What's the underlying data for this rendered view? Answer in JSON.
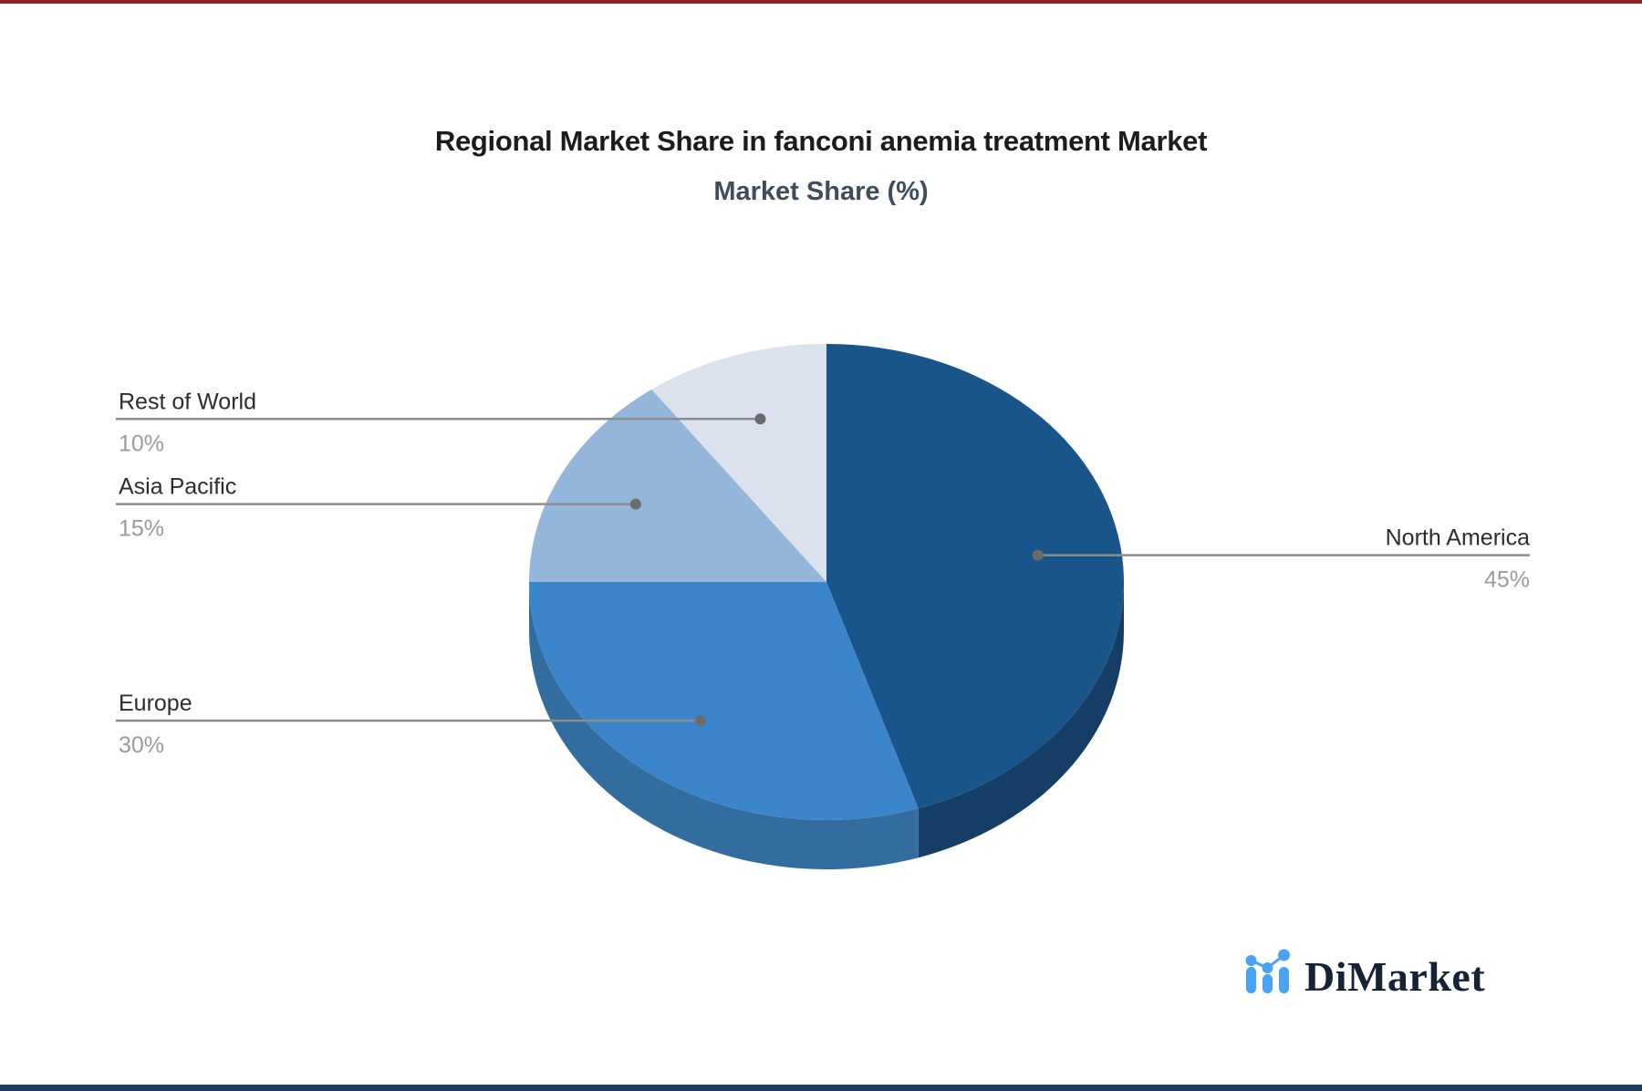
{
  "chart_data": {
    "type": "pie",
    "title": "Regional Market Share in fanconi anemia treatment Market",
    "subtitle": "Market Share (%)",
    "unit": "%",
    "start_angle_deg": 0,
    "direction": "clockwise",
    "effect_3d": true,
    "legend_position": "none",
    "slices": [
      {
        "label": "North America",
        "value": 45,
        "color": "#19548A",
        "side_color": "#153E66",
        "label_side": "right"
      },
      {
        "label": "Europe",
        "value": 30,
        "color": "#3B86CA",
        "side_color": "#336D9F",
        "label_side": "left"
      },
      {
        "label": "Asia Pacific",
        "value": 15,
        "color": "#94B6DB",
        "side_color": "#6E89A8",
        "label_side": "left"
      },
      {
        "label": "Rest of World",
        "value": 10,
        "color": "#DBE2EE",
        "side_color": "#A5AEBE",
        "label_side": "left"
      }
    ],
    "leader_line_color": "#8C8C8C",
    "leader_dot_color": "#6B6B6B"
  },
  "branding": {
    "logo_text": "DiMarket",
    "logo_icon": "bar-chart-with-trend-dots-icon",
    "logo_icon_color": "#4AA2F2",
    "logo_text_color": "#152238"
  },
  "accents": {
    "top_bar_color": "#8E1F24",
    "bottom_bar_color": "#1D3C63"
  }
}
